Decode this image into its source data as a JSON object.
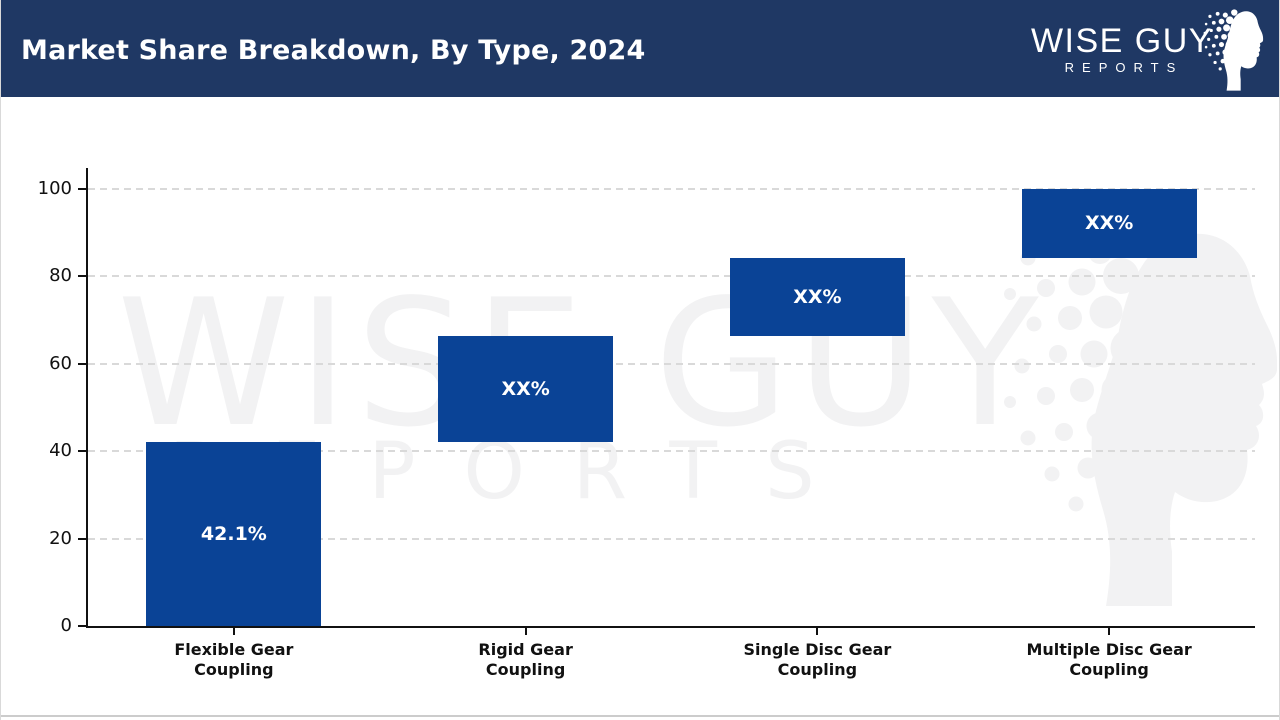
{
  "header": {
    "title": "Market Share Breakdown, By Type, 2024",
    "logo": {
      "line1": "WISE GUY",
      "line2": "REPORTS"
    }
  },
  "watermark": {
    "line1": "WISE GUY",
    "line2": "REPORTS"
  },
  "colors": {
    "header_bg": "#1f3864",
    "bar": "#0a4396",
    "bar_label": "#ffffff",
    "grid": "#d9d9d9",
    "axis": "#111111",
    "watermark": "#f2f2f3"
  },
  "chart_data": {
    "type": "bar",
    "subtype": "waterfall",
    "title": "Market Share Breakdown, By Type, 2024",
    "categories": [
      "Flexible Gear\nCoupling",
      "Rigid Gear\nCoupling",
      "Single Disc Gear\nCoupling",
      "Multiple Disc Gear\nCoupling"
    ],
    "segments": [
      {
        "start": 0,
        "end": 42.1,
        "label": "42.1%"
      },
      {
        "start": 42.1,
        "end": 66.2,
        "label": "XX%"
      },
      {
        "start": 66.2,
        "end": 84.2,
        "label": "XX%"
      },
      {
        "start": 84.2,
        "end": 100,
        "label": "XX%"
      }
    ],
    "ylabel": "",
    "xlabel": "",
    "yticks": [
      0,
      20,
      40,
      60,
      80,
      100
    ],
    "ylim": [
      0,
      104.7
    ],
    "grid": "horizontal-dashed",
    "legend": "none"
  }
}
